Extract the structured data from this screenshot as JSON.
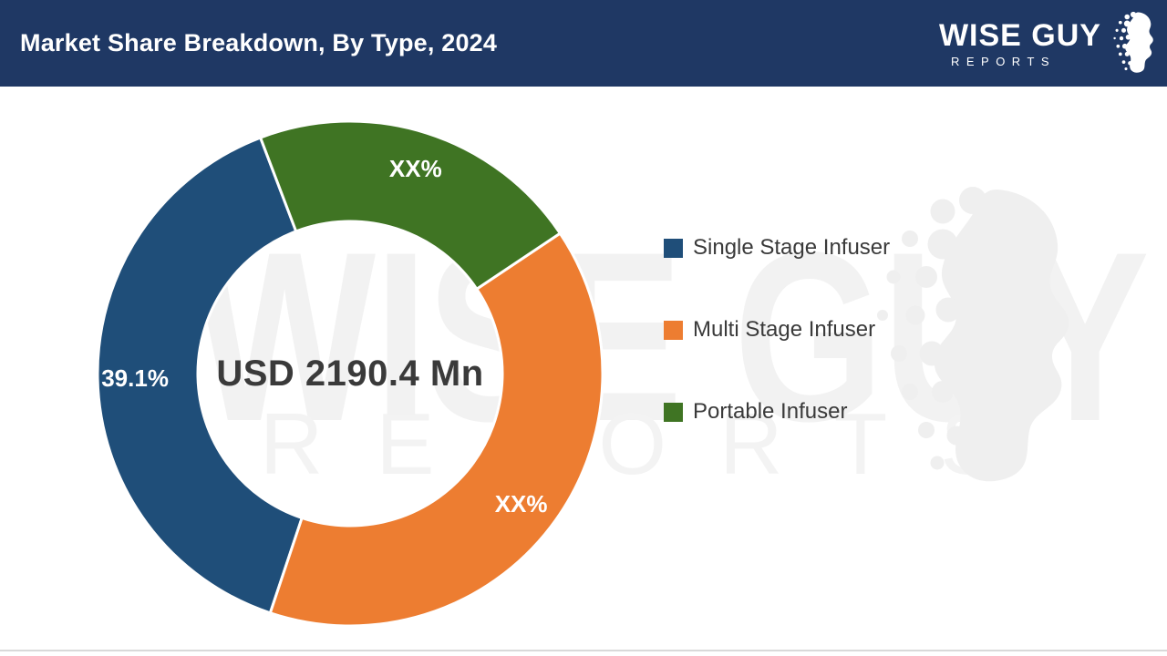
{
  "header": {
    "title": "Market Share Breakdown, By Type, 2024",
    "logo": {
      "wordmark": "WISE GUY",
      "subtext": "REPORTS"
    }
  },
  "watermark": {
    "wordmark": "WISE GUY",
    "subtext": "REPORTS"
  },
  "chart_data": {
    "type": "pie",
    "subtype": "donut",
    "title": "Market Share Breakdown, By Type, 2024",
    "center_label": "USD 2190.4 Mn",
    "start_angle_deg": 110.8,
    "direction": "ccw",
    "inner_radius_ratio": 0.6,
    "legend_position": "right",
    "segments": [
      {
        "label": "Single Stage Infuser",
        "color": "#1F4E79",
        "value_label": "39.1%",
        "share_pct": 39.1
      },
      {
        "label": "Multi Stage Infuser",
        "color": "#ED7D31",
        "value_label": "XX%",
        "share_pct": 39.5
      },
      {
        "label": "Portable Infuser",
        "color": "#3F7423",
        "value_label": "XX%",
        "share_pct": 21.4
      }
    ]
  },
  "colors": {
    "header_bg": "#1F3864",
    "title_text": "#FFFFFF",
    "segment_blue": "#1F4E79",
    "segment_orange": "#ED7D31",
    "segment_green": "#3F7423",
    "separator": "#FFFFFF",
    "center_text": "#3A3A3A",
    "legend_text": "#3A3A3A",
    "watermark": "#F2F2F2",
    "hairline": "#D9D9D9"
  }
}
